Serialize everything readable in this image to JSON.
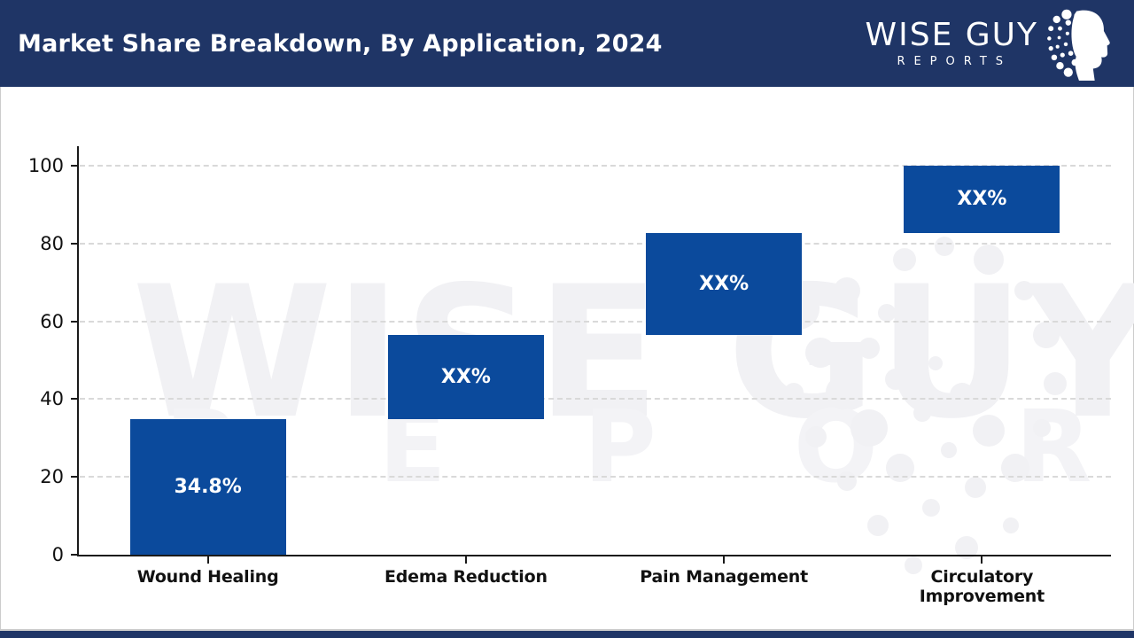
{
  "header": {
    "title": "Market Share Breakdown, By Application, 2024",
    "logo": {
      "line1": "WISE GUY",
      "line2": "REPORTS"
    }
  },
  "watermark": {
    "line1": "WISE GUY",
    "line2": "R E P O R T S"
  },
  "chart_data": {
    "type": "bar",
    "subtype": "waterfall-floating-bars",
    "title": "Market Share Breakdown, By Application, 2024",
    "categories": [
      "Wound Healing",
      "Edema Reduction",
      "Pain Management",
      "Circulatory Improvement"
    ],
    "category_label_lines": [
      [
        "Wound Healing"
      ],
      [
        "Edema Reduction"
      ],
      [
        "Pain Management"
      ],
      [
        "Circulatory",
        "Improvement"
      ]
    ],
    "bars": [
      {
        "category": "Wound Healing",
        "start": 0,
        "end": 34.8,
        "label": "34.8%"
      },
      {
        "category": "Edema Reduction",
        "start": 34.8,
        "end": 56.5,
        "label": "XX%"
      },
      {
        "category": "Pain Management",
        "start": 56.5,
        "end": 82.7,
        "label": "XX%"
      },
      {
        "category": "Circulatory Improvement",
        "start": 82.7,
        "end": 100,
        "label": "XX%"
      }
    ],
    "y_ticks": [
      0,
      20,
      40,
      60,
      80,
      100
    ],
    "ylim": [
      0,
      105
    ],
    "xlabel": "",
    "ylabel": "",
    "grid": "horizontal-dashed",
    "legend": "none",
    "bar_color": "#0b4a9c",
    "bar_label_color": "#ffffff"
  }
}
